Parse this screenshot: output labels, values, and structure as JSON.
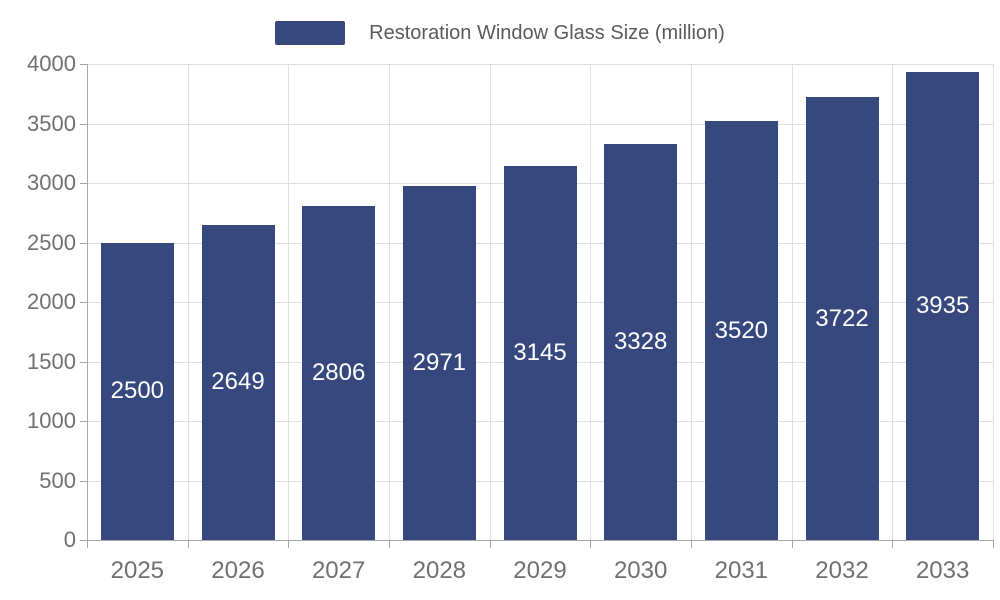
{
  "legend": {
    "label": "Restoration Window Glass Size (million)"
  },
  "chart_data": {
    "type": "bar",
    "title": "Restoration Window Glass Size (million)",
    "series": [
      {
        "name": "Restoration Window Glass Size (million)",
        "values": [
          2500,
          2649,
          2806,
          2971,
          3145,
          3328,
          3520,
          3722,
          3935
        ]
      }
    ],
    "categories": [
      "2025",
      "2026",
      "2027",
      "2028",
      "2029",
      "2030",
      "2031",
      "2032",
      "2033"
    ],
    "xlabel": "",
    "ylabel": "",
    "ylim": [
      0,
      4000
    ],
    "ytick_interval": 500,
    "yticks": [
      0,
      500,
      1000,
      1500,
      2000,
      2500,
      3000,
      3500,
      4000
    ],
    "grid": true,
    "legend_position": "top-center",
    "value_labels_position": "inside-center"
  },
  "colors": {
    "background": "#FFFFFF",
    "bar": "#37487F",
    "grid_line": "#DEDEDE",
    "axis_line": "#A6A6A6",
    "tick_label": "#707070",
    "legend_text": "#5A5A5A",
    "value_label": "#FFFFFF"
  }
}
